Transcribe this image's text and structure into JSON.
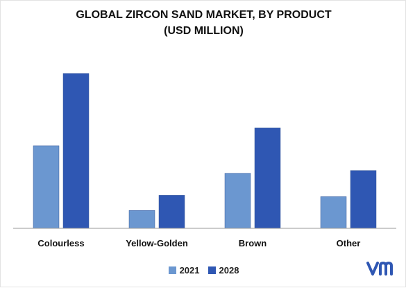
{
  "chart_data": {
    "type": "bar",
    "title_line1": "GLOBAL ZIRCON SAND MARKET, BY PRODUCT",
    "title_line2": "(USD MILLION)",
    "categories": [
      "Colourless",
      "Yellow-Golden",
      "Brown",
      "Other"
    ],
    "series": [
      {
        "name": "2021",
        "color": "#6b97d0",
        "values": [
          120,
          26,
          80,
          46
        ]
      },
      {
        "name": "2028",
        "color": "#2f57b3",
        "values": [
          225,
          48,
          146,
          84
        ]
      }
    ],
    "ylim": [
      0,
      250
    ],
    "grid": false,
    "legend_position": "bottom-center",
    "xlabel": "",
    "ylabel": ""
  },
  "branding": {
    "logo_icon": "mrfr-logo-icon",
    "logo_color": "#2f57b3"
  }
}
